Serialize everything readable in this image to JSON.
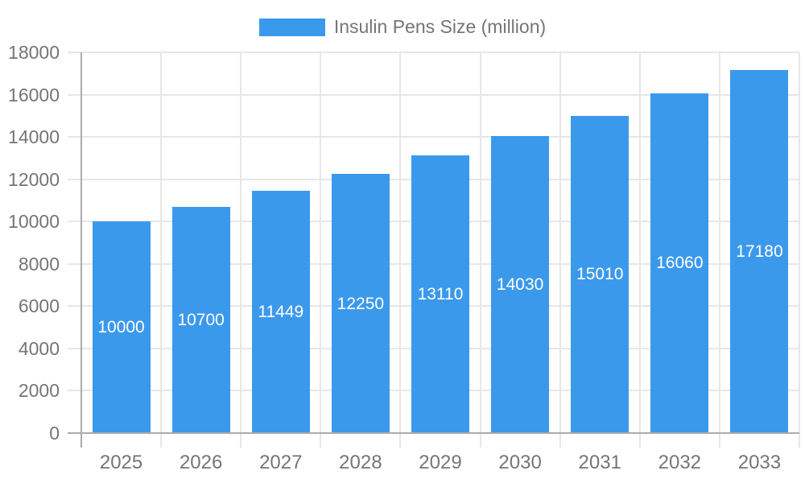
{
  "chart_data": {
    "type": "bar",
    "title": "",
    "legend_label": "Insulin Pens Size (million)",
    "legend_position": "top-center",
    "categories": [
      "2025",
      "2026",
      "2027",
      "2028",
      "2029",
      "2030",
      "2031",
      "2032",
      "2033"
    ],
    "values": [
      10000,
      10700,
      11449,
      12250,
      13110,
      14030,
      15010,
      16060,
      17180
    ],
    "xlabel": "",
    "ylabel": "",
    "ylim": [
      0,
      18000
    ],
    "ytick_step": 2000,
    "ytick_labels": [
      "0",
      "2000",
      "4000",
      "6000",
      "8000",
      "10000",
      "12000",
      "14000",
      "16000",
      "18000"
    ],
    "grid": "horizontal and vertical gridlines on",
    "bar_labels_inside": true,
    "colors": {
      "bar": "#3B99EC",
      "grid": "#E7E7E7",
      "axis": "#ABABAB",
      "axis_text": "#757575",
      "legend_text": "#757575",
      "bar_label_text": "#FFFFFF",
      "background": "#FFFFFF"
    }
  }
}
